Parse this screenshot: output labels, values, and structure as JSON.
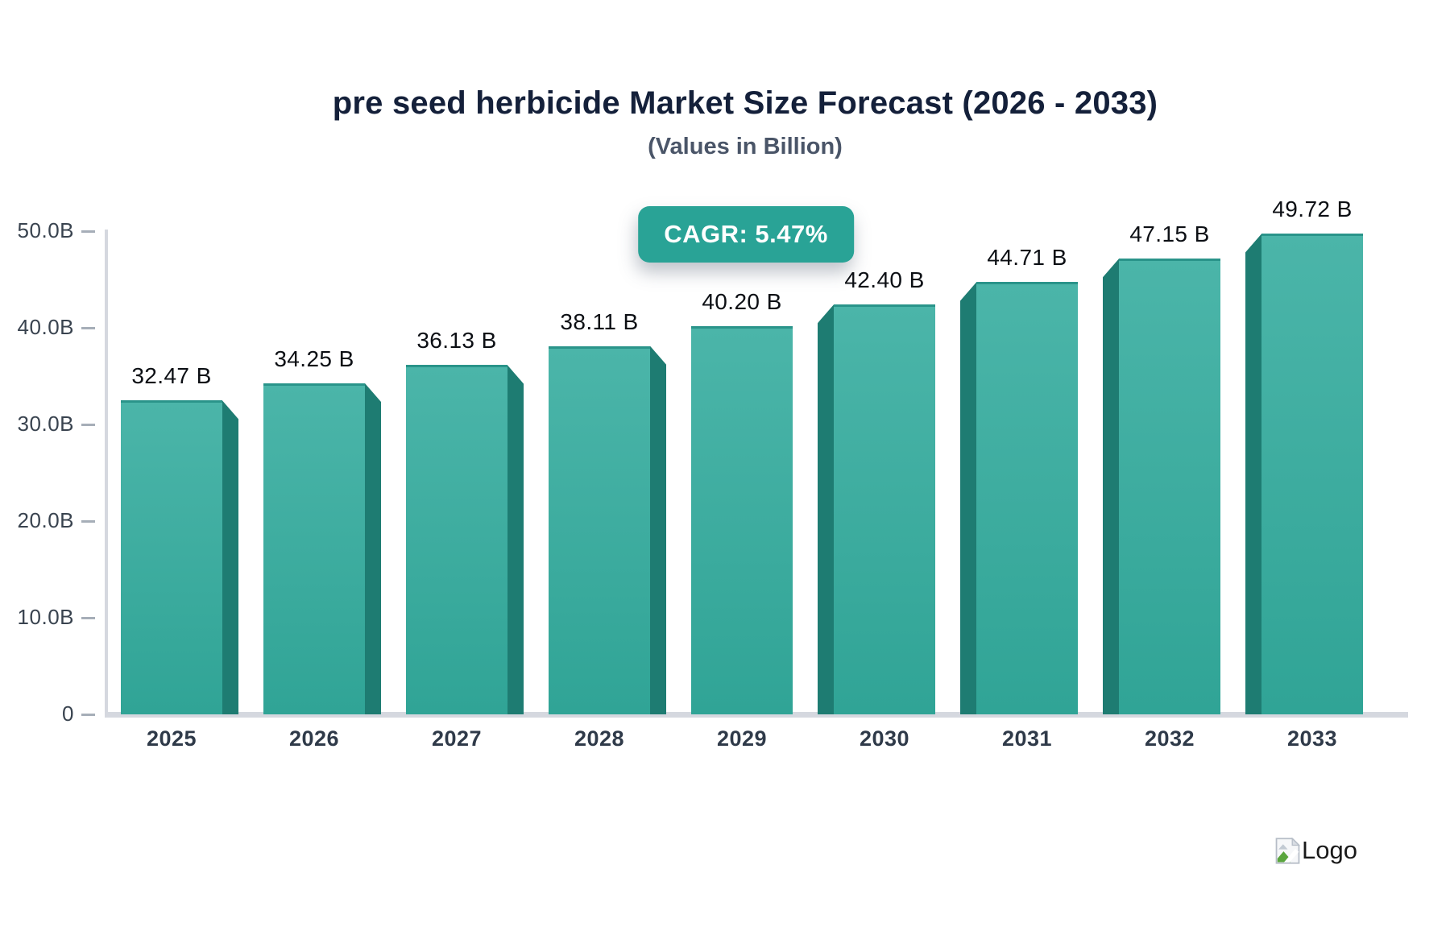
{
  "title": "pre seed herbicide Market Size Forecast (2026 - 2033)",
  "subtitle": "(Values in Billion)",
  "badge": {
    "label": "CAGR: 5.47%"
  },
  "logo": {
    "alt_text": "Logo"
  },
  "colors": {
    "bar_face_top": "#4bb5a9",
    "bar_face_bottom": "#30a496",
    "bar_top_edge": "#2a948a",
    "bar_side": "#1e7c72",
    "badge_bg": "#29a396",
    "axis_line": "#d5d8df",
    "tick_dash": "#a6aeb8"
  },
  "chart_data": {
    "type": "bar",
    "title": "pre seed herbicide Market Size Forecast (2026 - 2033)",
    "subtitle": "(Values in Billion)",
    "unit": "Billion",
    "categories": [
      "2025",
      "2026",
      "2027",
      "2028",
      "2029",
      "2030",
      "2031",
      "2032",
      "2033"
    ],
    "values": [
      32.47,
      34.25,
      36.13,
      38.11,
      40.2,
      42.4,
      44.71,
      47.15,
      49.72
    ],
    "bar_labels": [
      "32.47 B",
      "34.25 B",
      "36.13 B",
      "38.11 B",
      "40.20 B",
      "42.40 B",
      "44.71 B",
      "47.15 B",
      "49.72 B"
    ],
    "yticks": [
      {
        "value": 50,
        "label": "50.0B"
      },
      {
        "value": 40,
        "label": "40.0B"
      },
      {
        "value": 30,
        "label": "30.0B"
      },
      {
        "value": 20,
        "label": "20.0B"
      },
      {
        "value": 10,
        "label": "10.0B"
      },
      {
        "value": 0,
        "label": "0"
      }
    ],
    "ylim": [
      0,
      50
    ],
    "grid": false,
    "legend": false,
    "annotation": "CAGR: 5.47%"
  }
}
